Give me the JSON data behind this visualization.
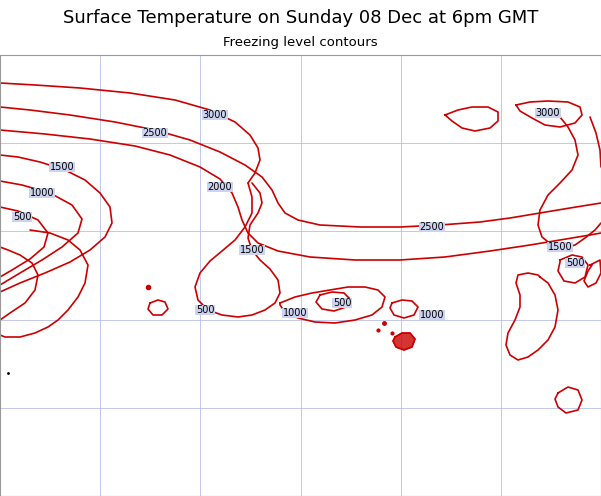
{
  "title": "Surface Temperature on Sunday 08 Dec at 6pm GMT",
  "subtitle": "Freezing level contours",
  "title_fontsize": 13,
  "subtitle_fontsize": 9.5,
  "background_color": "#cdd3ee",
  "header_color": "#ffffff",
  "contour_color": "#cc0000",
  "grid_color": "#b8bfe8",
  "border_color": "#999999",
  "fig_width": 6.01,
  "fig_height": 4.96,
  "dpi": 100
}
